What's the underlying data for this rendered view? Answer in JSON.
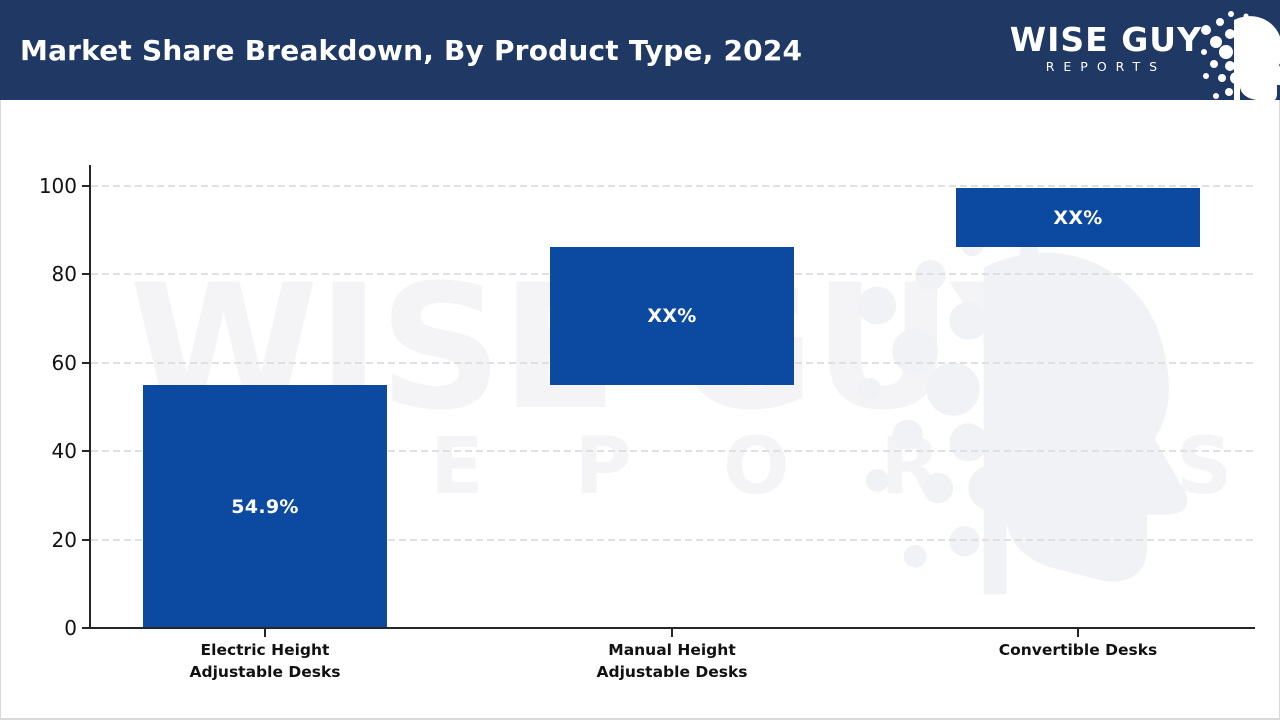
{
  "header": {
    "title": "Market Share Breakdown, By Product Type, 2024",
    "logo": {
      "wordmark": "WISE GUY",
      "subtext": "REPORTS"
    }
  },
  "watermark": {
    "line1": "WISE GUY",
    "line2": "REPORTS"
  },
  "chart_data": {
    "type": "bar",
    "subtype": "floating-waterfall",
    "title": "Market Share Breakdown, By Product Type, 2024",
    "categories": [
      "Electric Height Adjustable Desks",
      "Manual Height Adjustable Desks",
      "Convertible Desks"
    ],
    "category_lines": [
      [
        "Electric Height",
        "Adjustable Desks"
      ],
      [
        "Manual Height",
        "Adjustable Desks"
      ],
      [
        "Convertible Desks"
      ]
    ],
    "segments": [
      {
        "category": "Electric Height Adjustable Desks",
        "base": 0,
        "top": 54.9,
        "label": "54.9%"
      },
      {
        "category": "Manual Height Adjustable Desks",
        "base": 55,
        "top": 86,
        "label": "XX%"
      },
      {
        "category": "Convertible Desks",
        "base": 86,
        "top": 99.5,
        "label": "XX%"
      }
    ],
    "xlabel": "",
    "ylabel": "",
    "yticks": [
      0,
      20,
      40,
      60,
      80,
      100
    ],
    "ylim": [
      0,
      104.6
    ],
    "grid": {
      "axis": "y",
      "style": "dashed"
    },
    "legend": "none"
  },
  "colors": {
    "header_bg": "#1f3864",
    "bar": "#0b4aa0",
    "axis": "#262626",
    "grid": "#e0e0e0",
    "tick_text": "#111111",
    "bar_label_text": "#ffffff",
    "watermark": "#f4f4f7",
    "border": "#d9d9d9"
  }
}
